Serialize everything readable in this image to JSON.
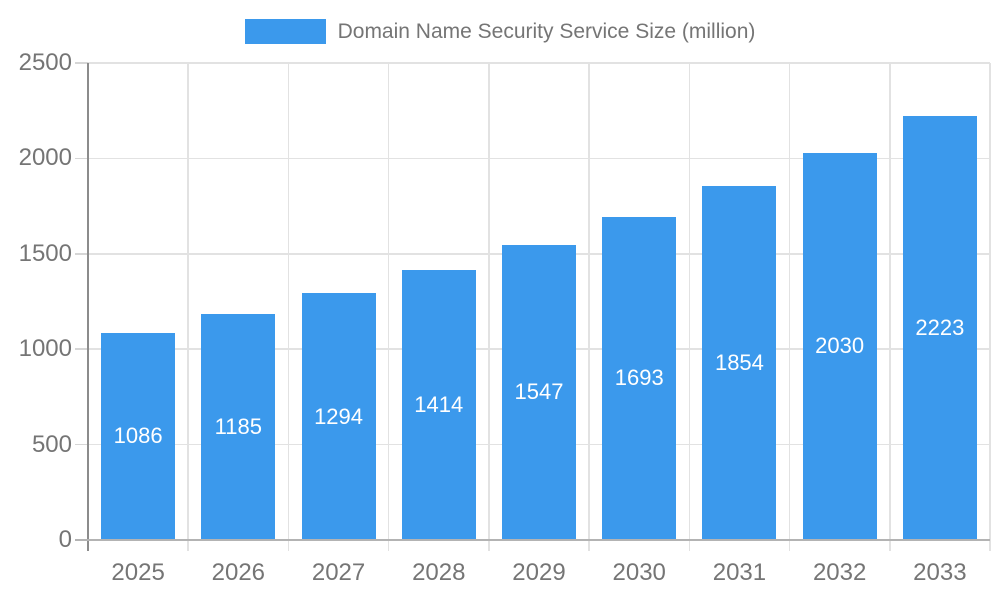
{
  "chart_data": {
    "type": "bar",
    "title": "Domain Name Security Service Size (million)",
    "categories": [
      "2025",
      "2026",
      "2027",
      "2028",
      "2029",
      "2030",
      "2031",
      "2032",
      "2033"
    ],
    "series": [
      {
        "name": "Domain Name Security Service Size (million)",
        "values": [
          1086,
          1185,
          1294,
          1414,
          1547,
          1693,
          1854,
          2030,
          2223
        ]
      }
    ],
    "values": [
      1086,
      1185,
      1294,
      1414,
      1547,
      1693,
      1854,
      2030,
      2223
    ],
    "value_labels": [
      "1086",
      "1185",
      "1294",
      "1414",
      "1547",
      "1693",
      "1854",
      "2030",
      "2223"
    ],
    "value_label_position": "inside-center",
    "xlabel": "",
    "ylabel": "",
    "ylim": [
      0,
      2500
    ],
    "y_ticks": [
      0,
      500,
      1000,
      1500,
      2000,
      2500
    ],
    "grid": true,
    "legend_position": "top-center",
    "colors": {
      "bar": "#3b99ec",
      "value_label": "#ffffff",
      "axis_text": "#757575",
      "grid_line": "#e2e2e2",
      "tick": "#d6d6d6",
      "y_axis_line": "#8c8c8c",
      "x_axis_line": "#b3b3b3",
      "background": "#ffffff"
    }
  }
}
